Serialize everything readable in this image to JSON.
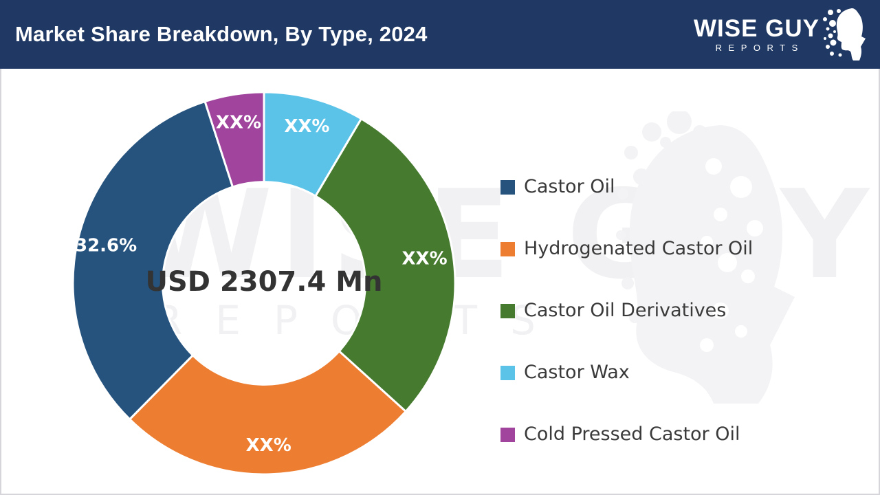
{
  "header": {
    "title": "Market Share Breakdown, By Type, 2024",
    "bg_color": "#203864",
    "logo": {
      "line1": "WISE GUY",
      "line2": "REPORTS"
    }
  },
  "watermark": {
    "line1": "WISE GUY",
    "line2": "REPORTS"
  },
  "chart_data": {
    "type": "donut",
    "title": "Market Share Breakdown, By Type, 2024",
    "center_label": "USD 2307.4 Mn",
    "units": "percent share",
    "direction": "clockwise",
    "start_angle_deg": 0,
    "outer_radius_px": 278,
    "inner_radius_ratio": 0.53,
    "label_radius_ratio": 0.85,
    "slice_border_color": "#ffffff",
    "segments": [
      {
        "label": "Castor Wax",
        "value": 8.5,
        "display": "XX%",
        "color": "#5bc2e8"
      },
      {
        "label": "Castor Oil Derivatives",
        "value": 28.2,
        "display": "XX%",
        "color": "#467b2f"
      },
      {
        "label": "Hydrogenated Castor Oil",
        "value": 25.7,
        "display": "XX%",
        "color": "#ed7d31"
      },
      {
        "label": "Castor Oil",
        "value": 32.6,
        "display": "32.6%",
        "color": "#25537e"
      },
      {
        "label": "Cold Pressed Castor Oil",
        "value": 5.0,
        "display": "XX%",
        "color": "#a0449d"
      }
    ],
    "legend_order": [
      3,
      2,
      1,
      0,
      4
    ],
    "legend_position": "right"
  }
}
